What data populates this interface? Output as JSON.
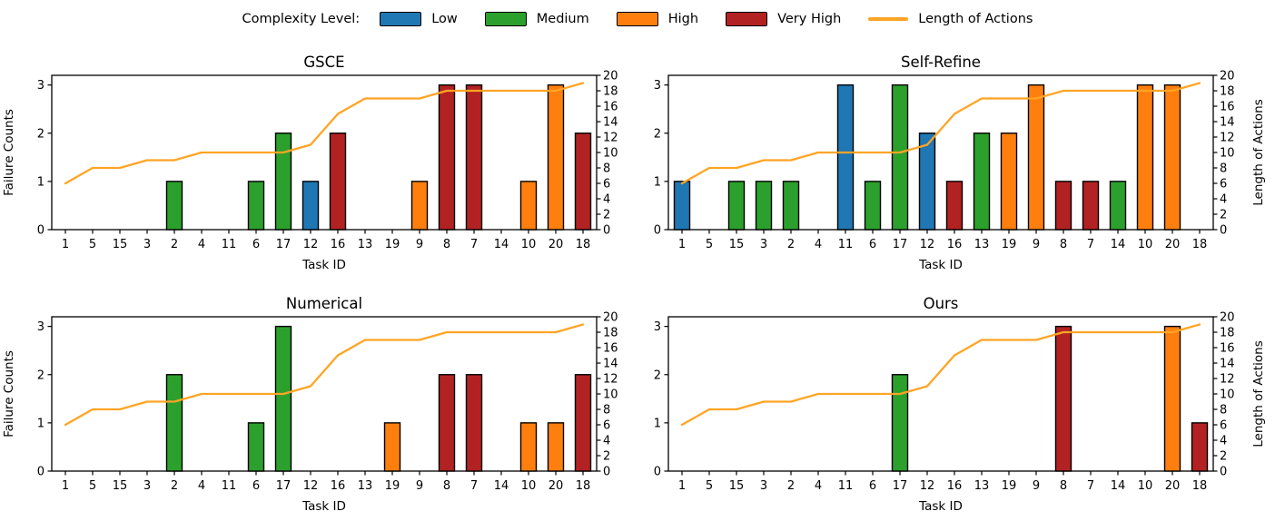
{
  "legend": {
    "title": "Complexity Level:",
    "items": [
      {
        "label": "Low",
        "color": "#1f77b4"
      },
      {
        "label": "Medium",
        "color": "#2ca02c"
      },
      {
        "label": "High",
        "color": "#ff7f0e"
      },
      {
        "label": "Very High",
        "color": "#b22222"
      }
    ],
    "line_label": "Length of Actions",
    "line_color": "#ffa424"
  },
  "chart_data": {
    "type": "bar",
    "description": "Four subplots; bars = failure counts colored by complexity level, orange line = length of actions on right axis; shared sorted Task ID order",
    "categories": [
      1,
      5,
      15,
      3,
      2,
      4,
      11,
      6,
      17,
      12,
      16,
      13,
      19,
      9,
      8,
      7,
      14,
      10,
      20,
      18
    ],
    "xlabel": "Task ID",
    "ylabel_left": "Failure Counts",
    "ylabel_right": "Length of Actions",
    "left_ticks": [
      0,
      1,
      2,
      3
    ],
    "right_ticks": [
      0,
      2,
      4,
      6,
      8,
      10,
      12,
      14,
      16,
      18,
      20
    ],
    "left_ylim": [
      0,
      3.2
    ],
    "right_ylim": [
      0,
      20
    ],
    "line": {
      "name": "Length of Actions",
      "values": [
        6,
        8,
        8,
        9,
        9,
        10,
        10,
        10,
        10,
        11,
        15,
        17,
        17,
        17,
        18,
        18,
        18,
        18,
        18,
        19
      ]
    },
    "colors": {
      "Low": "#1f77b4",
      "Medium": "#2ca02c",
      "High": "#ff7f0e",
      "Very High": "#b22222",
      "line": "#ffa424",
      "bar_edge": "#000000"
    },
    "subplots": [
      {
        "title": "GSCE",
        "failure_counts": [
          0,
          0,
          0,
          0,
          1,
          0,
          0,
          1,
          2,
          1,
          2,
          0,
          0,
          1,
          3,
          3,
          0,
          1,
          3,
          2
        ],
        "complexity": [
          null,
          null,
          null,
          null,
          "Medium",
          null,
          null,
          "Medium",
          "Medium",
          "Low",
          "Very High",
          null,
          null,
          "High",
          "Very High",
          "Very High",
          null,
          "High",
          "High",
          "Very High"
        ]
      },
      {
        "title": "Self-Refine",
        "failure_counts": [
          1,
          0,
          1,
          1,
          1,
          0,
          3,
          1,
          3,
          2,
          1,
          2,
          2,
          3,
          1,
          1,
          1,
          3,
          3,
          0
        ],
        "complexity": [
          "Low",
          null,
          "Medium",
          "Medium",
          "Medium",
          null,
          "Low",
          "Medium",
          "Medium",
          "Low",
          "Very High",
          "Medium",
          "High",
          "High",
          "Very High",
          "Very High",
          "Medium",
          "High",
          "High",
          null
        ]
      },
      {
        "title": "Numerical",
        "failure_counts": [
          0,
          0,
          0,
          0,
          2,
          0,
          0,
          1,
          3,
          0,
          0,
          0,
          1,
          0,
          2,
          2,
          0,
          1,
          1,
          2
        ],
        "complexity": [
          null,
          null,
          null,
          null,
          "Medium",
          null,
          null,
          "Medium",
          "Medium",
          null,
          null,
          null,
          "High",
          null,
          "Very High",
          "Very High",
          null,
          "High",
          "High",
          "Very High"
        ]
      },
      {
        "title": "Ours",
        "failure_counts": [
          0,
          0,
          0,
          0,
          0,
          0,
          0,
          0,
          2,
          0,
          0,
          0,
          0,
          0,
          3,
          0,
          0,
          0,
          3,
          1
        ],
        "complexity": [
          null,
          null,
          null,
          null,
          null,
          null,
          null,
          null,
          "Medium",
          null,
          null,
          null,
          null,
          null,
          "Very High",
          null,
          null,
          null,
          "High",
          "Very High"
        ]
      }
    ]
  }
}
